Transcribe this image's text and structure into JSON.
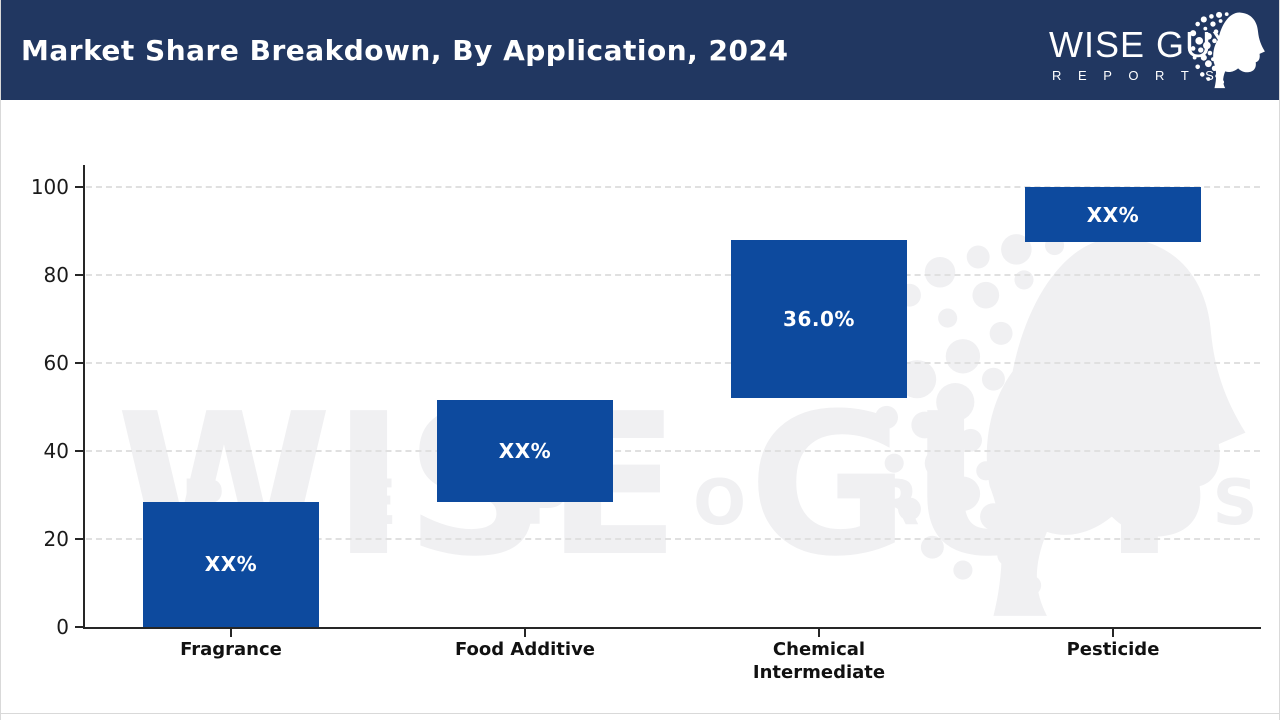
{
  "header": {
    "title": "Market Share Breakdown, By Application, 2024",
    "logo": {
      "line1": "WISE GUY",
      "line2": "R E P O R T S"
    }
  },
  "watermark": {
    "line1": "WISE GUY",
    "line2": "R E P O R T S"
  },
  "chart_data": {
    "type": "bar",
    "subtype": "floating-waterfall",
    "title": "Market Share Breakdown, By Application, 2024",
    "categories": [
      "Fragrance",
      "Food Additive",
      "Chemical Intermediate",
      "Pesticide"
    ],
    "segments": [
      {
        "category": "Fragrance",
        "start": 0,
        "end": 28.5,
        "label": "XX%"
      },
      {
        "category": "Food Additive",
        "start": 28.5,
        "end": 51.5,
        "label": "XX%"
      },
      {
        "category": "Chemical Intermediate",
        "start": 52,
        "end": 88,
        "label": "36.0%",
        "value": 36.0
      },
      {
        "category": "Pesticide",
        "start": 87.5,
        "end": 100,
        "label": "XX%"
      }
    ],
    "ylim": [
      0,
      100
    ],
    "y_ticks": [
      0,
      20,
      40,
      60,
      80,
      100
    ],
    "xlabel": "",
    "ylabel": "",
    "grid": "horizontal-dashed",
    "legend": "none",
    "bar_color": "#0d4a9e",
    "bar_label_color": "#ffffff"
  },
  "colors": {
    "header_bg": "#213761",
    "bar_blue": "#0d4a9e",
    "watermark_gray": "#f0f0f2",
    "grid_gray": "#e0e0e0",
    "axis_dark": "#262626",
    "border_gray": "#d9d9d9"
  }
}
